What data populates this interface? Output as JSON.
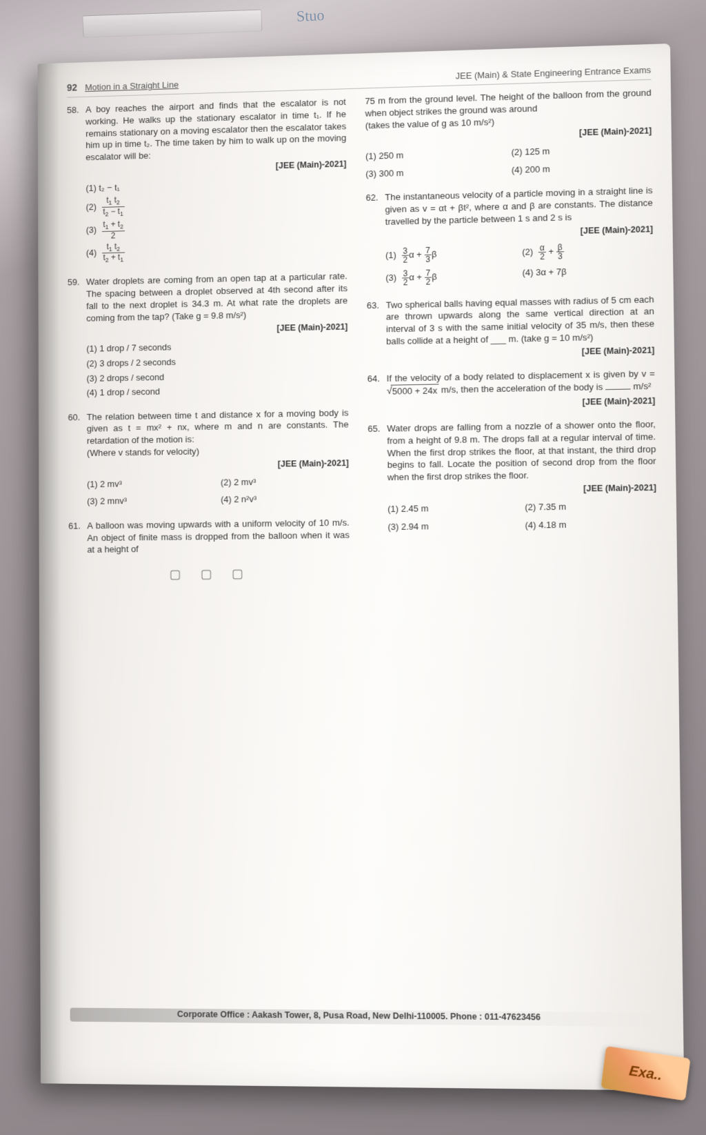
{
  "page": {
    "number": "92",
    "chapter": "Motion in a Straight Line",
    "book_title": "JEE (Main) & State Engineering Entrance Exams",
    "scribble": "Stuo",
    "corner_brand": "Exa..",
    "boxes_glyphs": "▢ ▢ ▢"
  },
  "footer": "Corporate Office : Aakash Tower, 8, Pusa Road, New Delhi-110005. Phone : 011-47623456",
  "questions": {
    "q58": {
      "num": "58.",
      "text": "A boy reaches the airport and finds that the escalator is not working. He walks up the stationary escalator in time t₁. If he remains stationary on a moving escalator then the escalator takes him up in time t₂. The time taken by him to walk up on the moving escalator will be:",
      "tag": "[JEE (Main)-2021]",
      "opts": [
        "(1) t₂ − t₁",
        "(2) ",
        "(3) ",
        "(4) "
      ]
    },
    "q59": {
      "num": "59.",
      "text": "Water droplets are coming from an open tap at a particular rate. The spacing between a droplet observed at 4th second after its fall to the next droplet is 34.3 m. At what rate the droplets are coming from the tap? (Take g = 9.8 m/s²)",
      "tag": "[JEE (Main)-2021]",
      "opts": [
        "(1) 1 drop / 7 seconds",
        "(2) 3 drops / 2 seconds",
        "(3) 2 drops / second",
        "(4) 1 drop / second"
      ]
    },
    "q60": {
      "num": "60.",
      "text": "The relation between time t and distance x for a moving body is given as t = mx² + nx, where m and n are constants. The retardation of the motion is:",
      "note": "(Where v stands for velocity)",
      "tag": "[JEE (Main)-2021]",
      "opts": [
        "(1) 2 mv³",
        "(2) 2 mv³",
        "(3) 2 mnv³",
        "(4) 2 n²v³"
      ]
    },
    "q61": {
      "num": "61.",
      "text": "A balloon was moving upwards with a uniform velocity of 10 m/s. An object of finite mass is dropped from the balloon when it was at a height of"
    },
    "q61b": {
      "text": "75 m from the ground level. The height of the balloon from the ground when object strikes the ground was around",
      "note": "(takes the value of g as 10 m/s²)",
      "tag": "[JEE (Main)-2021]",
      "opts": [
        "(1) 250 m",
        "(2) 125 m",
        "(3) 300 m",
        "(4) 200 m"
      ]
    },
    "q62": {
      "num": "62.",
      "text": "The instantaneous velocity of a particle moving in a straight line is given as v = αt + βt², where α and β are constants. The distance travelled by the particle between 1 s and 2 s is",
      "tag": "[JEE (Main)-2021]",
      "opts": [
        "(1) ",
        "(2) ",
        "(3) ",
        "(4) 3α + 7β"
      ]
    },
    "q63": {
      "num": "63.",
      "text": "Two spherical balls having equal masses with radius of 5 cm each are thrown upwards along the same vertical direction at an interval of 3 s with the same initial velocity of 35 m/s, then these balls collide at a height of ___ m. (take g = 10 m/s²)",
      "tag": "[JEE (Main)-2021]"
    },
    "q64": {
      "num": "64.",
      "text_a": "If the velocity of a body related to displacement x is given by v = ",
      "sqrt_body": "5000 + 24x",
      "text_b": " m/s, then the acceleration of the body is ",
      "text_c": " m/s²",
      "tag": "[JEE (Main)-2021]"
    },
    "q65": {
      "num": "65.",
      "text": "Water drops are falling from a nozzle of a shower onto the floor, from a height of 9.8 m. The drops fall at a regular interval of time. When the first drop strikes the floor, at that instant, the third drop begins to fall. Locate the position of second drop from the floor when the first drop strikes the floor.",
      "tag": "[JEE (Main)-2021]",
      "opts": [
        "(1) 2.45 m",
        "(2) 7.35 m",
        "(3) 2.94 m",
        "(4) 4.18 m"
      ]
    }
  }
}
